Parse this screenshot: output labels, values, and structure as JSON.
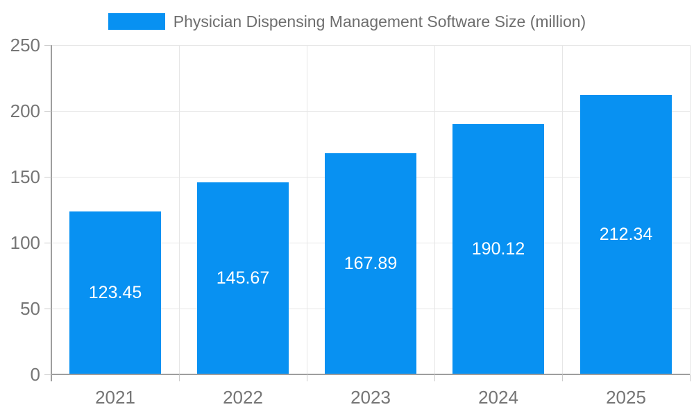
{
  "chart_data": {
    "type": "bar",
    "title": "Physician Dispensing Management Software Size (million)",
    "categories": [
      "2021",
      "2022",
      "2023",
      "2024",
      "2025"
    ],
    "values": [
      123.45,
      145.67,
      167.89,
      190.12,
      212.34
    ],
    "value_labels": [
      "123.45",
      "145.67",
      "167.89",
      "190.12",
      "212.34"
    ],
    "yticks": [
      0,
      50,
      100,
      150,
      200,
      250
    ],
    "ylim": [
      0,
      250
    ],
    "xlabel": "",
    "ylabel": "",
    "grid": true,
    "legend_position": "top-center",
    "colors": {
      "bar": "#0891f2",
      "bar_value_text": "#ffffff",
      "axis_line": "#9e9e9e",
      "gridline": "#e6e6e6",
      "tick_mark": "#cccccc",
      "tick_text": "#757575",
      "legend_text": "#6e6e6e",
      "background": "#ffffff"
    }
  }
}
